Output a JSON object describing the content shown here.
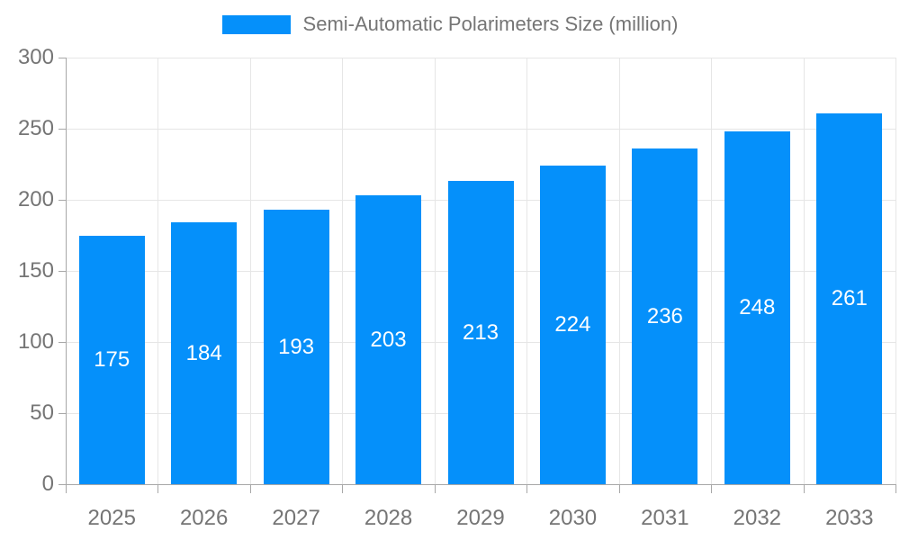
{
  "chart_data": {
    "type": "bar",
    "title": "",
    "legend": "Semi-Automatic Polarimeters Size (million)",
    "legend_position": "top",
    "categories": [
      "2025",
      "2026",
      "2027",
      "2028",
      "2029",
      "2030",
      "2031",
      "2032",
      "2033"
    ],
    "values": [
      175,
      184,
      193,
      203,
      213,
      224,
      236,
      248,
      261
    ],
    "xlabel": "",
    "ylabel": "",
    "ylim": [
      0,
      300
    ],
    "yticks": [
      0,
      50,
      100,
      150,
      200,
      250,
      300
    ],
    "grid": "on",
    "value_labels": "inside-center-white",
    "colors": {
      "bar": "#0590FA",
      "axis_text": "#757575",
      "legend_text": "#757575",
      "gridline": "#e6e6e6",
      "axis_line": "#a8a8a8",
      "value_label": "#ffffff",
      "background": "#ffffff"
    }
  }
}
